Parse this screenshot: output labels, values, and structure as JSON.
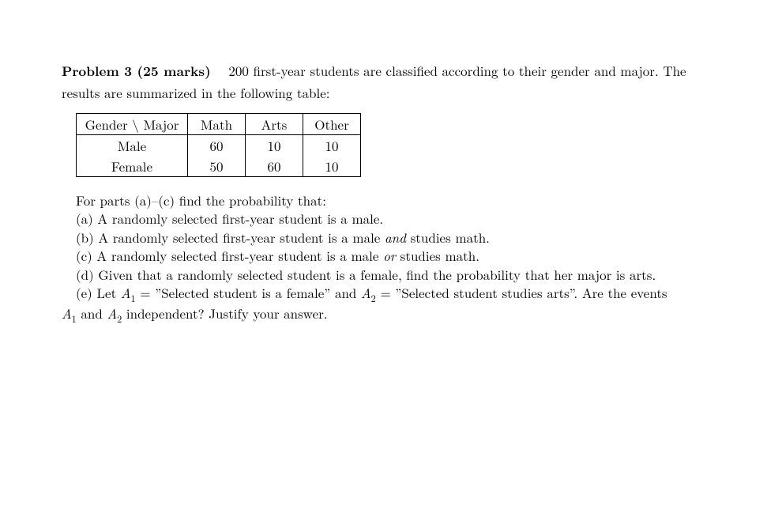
{
  "problem": {
    "heading_bold": "Problem 3 (25 marks)",
    "intro_part1": "200 first-year students are classified according to their gender and major. The",
    "intro_part2": "results are summarized in the following table:"
  },
  "table": {
    "columns": [
      "Gender \\ Major",
      "Math",
      "Arts",
      "Other"
    ],
    "rows": [
      [
        "Male",
        "60",
        "10",
        "10"
      ],
      [
        "Female",
        "50",
        "60",
        "10"
      ]
    ]
  },
  "parts": {
    "lead": "For parts (a)–(c) find the probability that:",
    "a": "(a) A randomly selected first-year student is a male.",
    "b_pre": "(b) A randomly selected first-year student is a male ",
    "b_em": "and",
    "b_post": " studies math.",
    "c_pre": "(c) A randomly selected first-year student is a male ",
    "c_em": "or",
    "c_post": " studies math.",
    "d": "(d) Given that a randomly selected student is a female, find the probability that her major is arts.",
    "e_pre": "(e) Let ",
    "e_A1": "A",
    "e_sub1": "1",
    "e_mid1": " = ”Selected student is a female” and ",
    "e_A2": "A",
    "e_sub2": "2",
    "e_mid2": " = ”Selected student studies arts”. Are the events",
    "final_A1": "A",
    "final_sub1": "1",
    "final_and": " and ",
    "final_A2": "A",
    "final_sub2": "2",
    "final_tail": " independent? Justify your answer."
  }
}
